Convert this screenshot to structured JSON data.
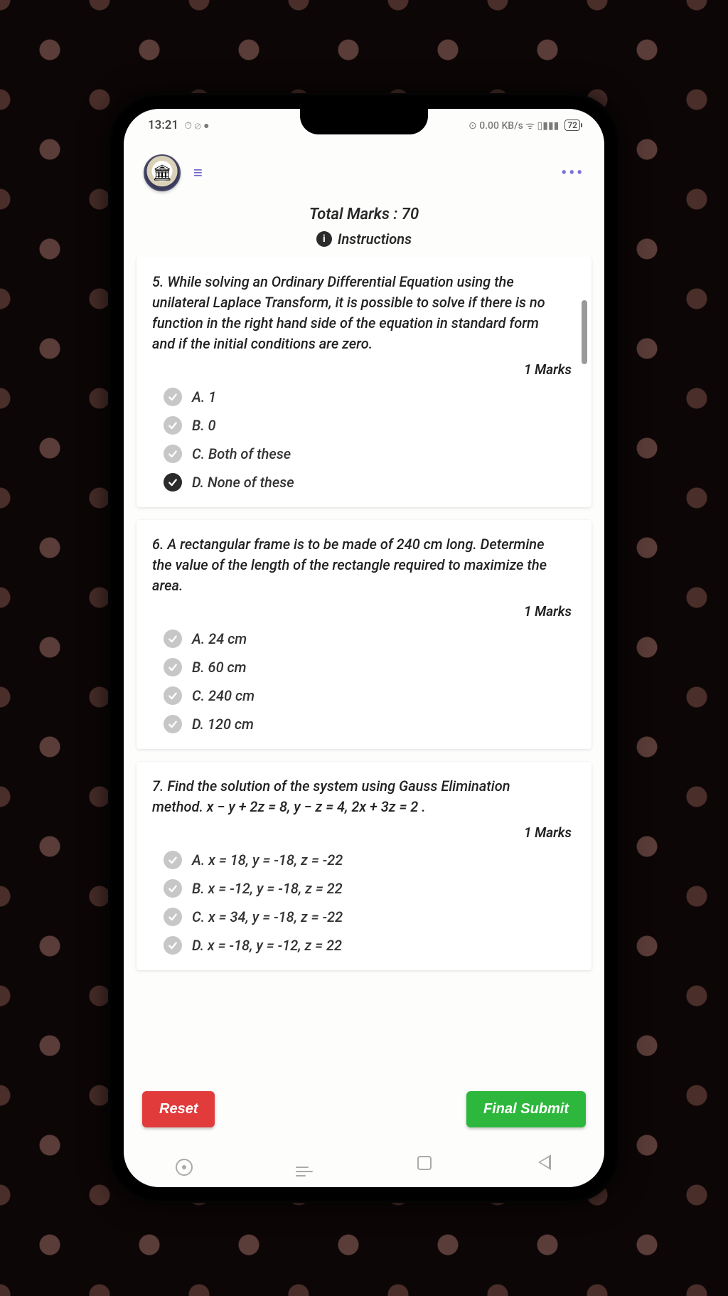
{
  "statusbar": {
    "time": "13:21",
    "left_indicators": "⏱ ⊘ ●",
    "right_indicators": "⊙ 0.00 KB/s  ᯤ ▯▮▮▮",
    "battery_text": "72"
  },
  "header": {
    "total_marks_label": "Total Marks : 70",
    "instructions_label": "Instructions"
  },
  "questions": [
    {
      "number": "5",
      "text": "5. While solving an Ordinary Differential Equation using the unilateral Laplace Transform, it is possible to solve if there is no function in the right hand side of the equation in standard form and if the initial conditions are zero.",
      "marks": "1 Marks",
      "show_scroll_thumb": true,
      "options": [
        {
          "label": "A. 1",
          "selected": false
        },
        {
          "label": "B. 0",
          "selected": false
        },
        {
          "label": "C. Both of these",
          "selected": false
        },
        {
          "label": "D. None of these",
          "selected": true
        }
      ]
    },
    {
      "number": "6",
      "text": "6. A rectangular frame is to be made of 240 cm long. Determine the value of the length of the rectangle required to maximize the area.",
      "marks": "1 Marks",
      "show_scroll_thumb": false,
      "options": [
        {
          "label": "A. 24 cm",
          "selected": false
        },
        {
          "label": "B. 60 cm",
          "selected": false
        },
        {
          "label": "C. 240 cm",
          "selected": false
        },
        {
          "label": "D. 120 cm",
          "selected": false
        }
      ]
    },
    {
      "number": "7",
      "text": "7. Find the solution of the system using Gauss Elimination method. x − y + 2z = 8, y − z = 4, 2x + 3z = 2 .",
      "marks": "1 Marks",
      "show_scroll_thumb": false,
      "options": [
        {
          "label": "A. x = 18, y = -18, z = -22",
          "selected": false
        },
        {
          "label": "B. x = -12, y = -18, z = 22",
          "selected": false
        },
        {
          "label": "C. x = 34, y = -18, z = -22",
          "selected": false
        },
        {
          "label": "D. x = -18, y = -12, z = 22",
          "selected": false
        }
      ]
    }
  ],
  "footer": {
    "reset_label": "Reset",
    "submit_label": "Final Submit"
  },
  "colors": {
    "reset_bg": "#e23b3b",
    "submit_bg": "#2db83d",
    "selected_bullet": "#2b2b2b",
    "unselected_bullet": "#c7c7c7"
  }
}
